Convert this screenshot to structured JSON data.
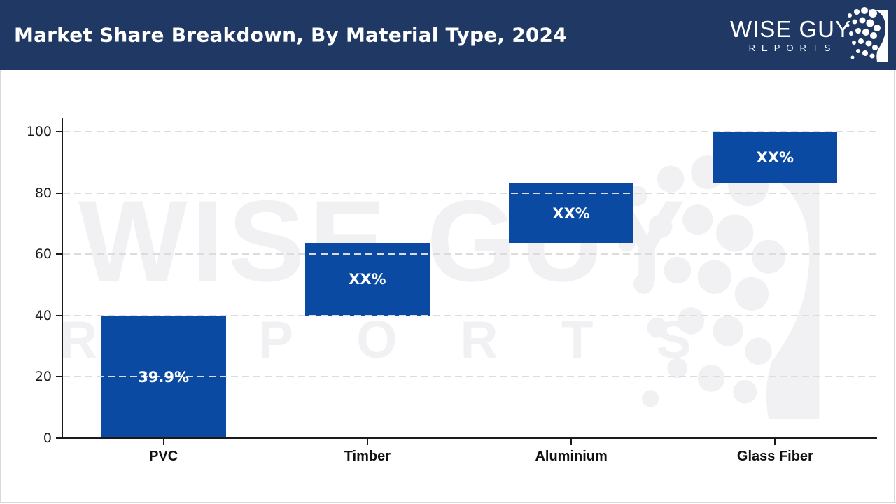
{
  "header": {
    "title": "Market Share Breakdown, By Material Type, 2024",
    "logo": {
      "wordmark": "WISE GUY",
      "reports": "REPORTS"
    }
  },
  "watermark": {
    "line1": "WISE GUY",
    "line2": "REPORTS"
  },
  "colors": {
    "header_bg": "#1F3864",
    "bar": "#0B4AA2",
    "axis": "#1A1A1A",
    "grid": "#DCDCDC",
    "watermark": "#F1F1F4",
    "title_text": "#FFFFFF",
    "bar_label_text": "#FFFFFF"
  },
  "chart_data": {
    "type": "bar",
    "subtype": "floating-waterfall",
    "title": "Market Share Breakdown, By Material Type, 2024",
    "categories": [
      "PVC",
      "Timber",
      "Aluminium",
      "Glass Fiber"
    ],
    "bars": [
      {
        "category": "PVC",
        "start": 0,
        "end": 39.9,
        "value_label": "39.9%"
      },
      {
        "category": "Timber",
        "start": 39.9,
        "end": 63.6,
        "value_label": "XX%"
      },
      {
        "category": "Aluminium",
        "start": 63.6,
        "end": 83.2,
        "value_label": "XX%"
      },
      {
        "category": "Glass Fiber",
        "start": 83.2,
        "end": 100,
        "value_label": "XX%"
      }
    ],
    "yticks": [
      0,
      20,
      40,
      60,
      80,
      100
    ],
    "ylim": [
      0,
      104.5
    ],
    "xlabel": "",
    "ylabel": "",
    "bar_color": "#0B4AA2",
    "grid": {
      "horizontal": true,
      "style": "dashed",
      "color": "#DCDCDC",
      "above_bars": true
    },
    "legend": null
  }
}
